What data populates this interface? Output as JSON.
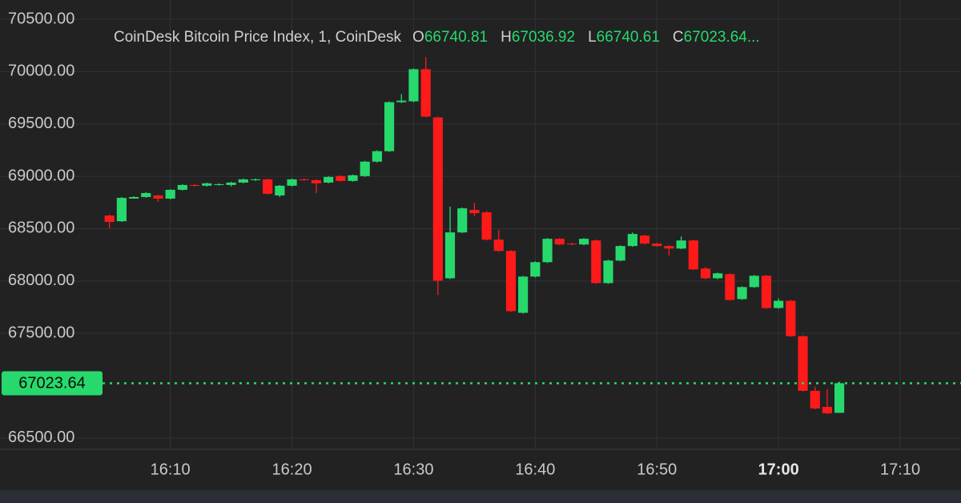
{
  "chart_data": {
    "type": "candlestick",
    "title": "CoinDesk Bitcoin Price Index, 1, CoinDesk",
    "ohlc_legend": [
      {
        "letter": "O",
        "value": "66740.81"
      },
      {
        "letter": "H",
        "value": "67036.92"
      },
      {
        "letter": "L",
        "value": "66740.61"
      },
      {
        "letter": "C",
        "value": "67023.64..."
      }
    ],
    "x": [
      "16:05",
      "16:06",
      "16:07",
      "16:08",
      "16:09",
      "16:10",
      "16:11",
      "16:12",
      "16:13",
      "16:14",
      "16:15",
      "16:16",
      "16:17",
      "16:18",
      "16:19",
      "16:20",
      "16:21",
      "16:22",
      "16:23",
      "16:24",
      "16:25",
      "16:26",
      "16:27",
      "16:28",
      "16:29",
      "16:30",
      "16:31",
      "16:32",
      "16:33",
      "16:34",
      "16:35",
      "16:36",
      "16:37",
      "16:38",
      "16:39",
      "16:40",
      "16:41",
      "16:42",
      "16:43",
      "16:44",
      "16:45",
      "16:46",
      "16:47",
      "16:48",
      "16:49",
      "16:50",
      "16:51",
      "16:52",
      "16:53",
      "16:54",
      "16:55",
      "16:56",
      "16:57",
      "16:58",
      "16:59",
      "17:00",
      "17:01",
      "17:02",
      "17:03",
      "17:04",
      "17:05"
    ],
    "open": [
      68625,
      68571,
      68787,
      68802,
      68817,
      68787,
      68871,
      68917,
      68910,
      68917,
      68917,
      68940,
      68963,
      68971,
      68817,
      68910,
      68971,
      68963,
      68940,
      69002,
      68956,
      69002,
      69140,
      69240,
      69708,
      69716,
      70023,
      69562,
      68026,
      68464,
      68679,
      68656,
      68395,
      68287,
      67696,
      68042,
      68180,
      68403,
      68357,
      68349,
      68387,
      67980,
      68195,
      68334,
      68433,
      68357,
      68334,
      68310,
      68387,
      68119,
      68026,
      68065,
      67827,
      67942,
      68050,
      67742,
      67811,
      67473,
      66951,
      66797,
      66740.81
    ],
    "high": [
      68633,
      68802,
      68810,
      68848,
      68825,
      68877,
      68925,
      68925,
      68940,
      68933,
      68948,
      68979,
      68979,
      68979,
      68917,
      68979,
      68979,
      68971,
      69002,
      69010,
      69017,
      69148,
      69248,
      69716,
      69785,
      70031,
      70138,
      69570,
      68710,
      68702,
      68748,
      68671,
      68487,
      68295,
      68050,
      68188,
      68410,
      68410,
      68364,
      68410,
      68395,
      68203,
      68341,
      68464,
      68441,
      68364,
      68341,
      68426,
      68395,
      68134,
      68080,
      68073,
      67950,
      68057,
      68057,
      67834,
      67819,
      67481,
      66990,
      66967,
      67036.92
    ],
    "low": [
      68502,
      68564,
      68787,
      68795,
      68756,
      68780,
      68863,
      68902,
      68902,
      68910,
      68902,
      68933,
      68956,
      68825,
      68802,
      68902,
      68956,
      68840,
      68933,
      68948,
      68948,
      68994,
      69132,
      69232,
      69700,
      69708,
      69562,
      67865,
      68018,
      68457,
      68618,
      68387,
      68280,
      67704,
      67688,
      68034,
      68172,
      68341,
      68341,
      68341,
      67972,
      67972,
      68188,
      68326,
      68349,
      68326,
      68241,
      68303,
      68103,
      68018,
      68018,
      67812,
      67819,
      67934,
      67735,
      67735,
      67466,
      66944,
      66774,
      66728,
      66740.61
    ],
    "close": [
      68564,
      68794,
      68802,
      68840,
      68787,
      68871,
      68917,
      68910,
      68933,
      68925,
      68940,
      68971,
      68971,
      68833,
      68910,
      68971,
      68963,
      68933,
      68994,
      68956,
      69010,
      69140,
      69240,
      69708,
      69723,
      70023,
      69570,
      68003,
      68464,
      68694,
      68648,
      68395,
      68287,
      67712,
      68042,
      68180,
      68403,
      68349,
      68349,
      68403,
      67980,
      68195,
      68334,
      68449,
      68357,
      68334,
      68310,
      68387,
      68111,
      68026,
      68073,
      67819,
      67942,
      68050,
      67742,
      67811,
      67473,
      66951,
      66782,
      66736,
      67023.64
    ],
    "up_color": "#27d96c",
    "down_color": "#ff1a1a",
    "ylim": [
      66392,
      70684
    ],
    "yticks": [
      {
        "value": 66500,
        "label": "66500.00"
      },
      {
        "value": 67500,
        "label": "67500.00"
      },
      {
        "value": 68000,
        "label": "68000.00"
      },
      {
        "value": 68500,
        "label": "68500.00"
      },
      {
        "value": 69000,
        "label": "69000.00"
      },
      {
        "value": 69500,
        "label": "69500.00"
      },
      {
        "value": 70000,
        "label": "70000.00"
      },
      {
        "value": 70500,
        "label": "70500.00"
      }
    ],
    "xlim": [
      "15:56",
      "17:15"
    ],
    "xticks": [
      "16:10",
      "16:20",
      "16:30",
      "16:40",
      "16:50",
      "17:00",
      "17:10"
    ],
    "grid": true,
    "last_price": 67023.64,
    "last_price_color": "#27d96c"
  }
}
